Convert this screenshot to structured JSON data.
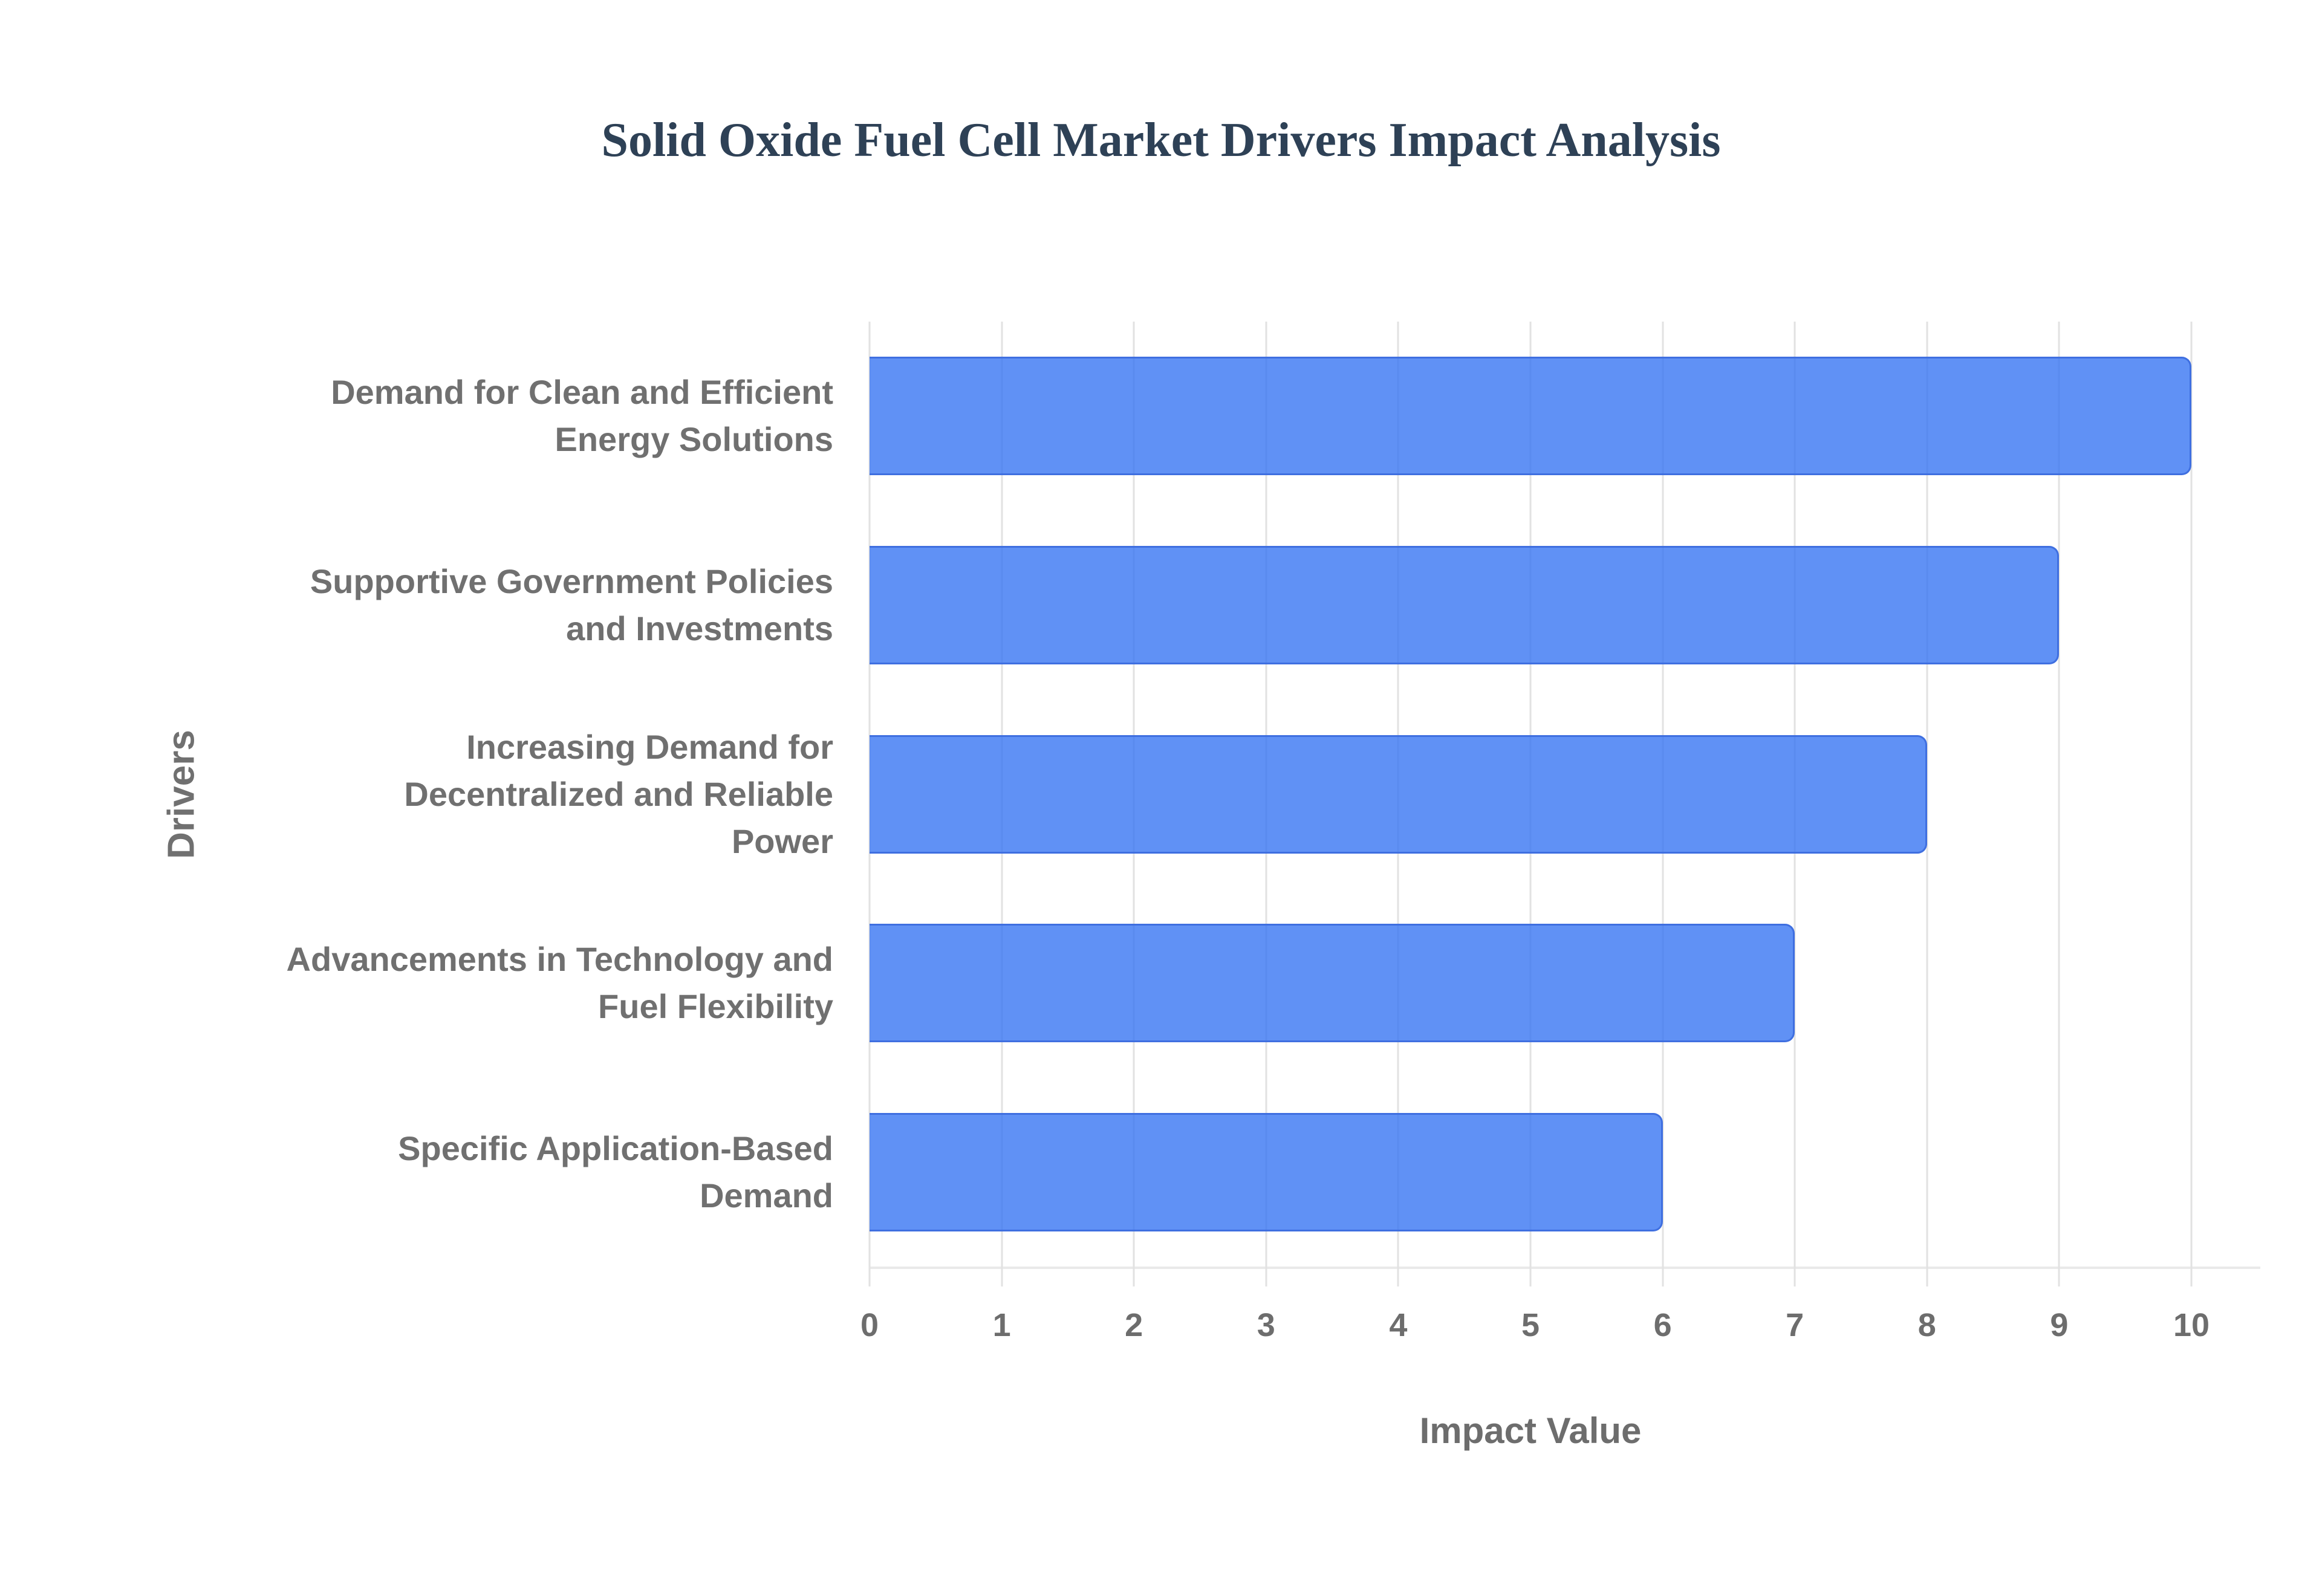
{
  "page": {
    "background": "#ffffff"
  },
  "chart_data": {
    "type": "bar",
    "orientation": "horizontal",
    "title": "Solid Oxide Fuel Cell Market Drivers Impact Analysis",
    "xlabel": "Impact Value",
    "ylabel": "Drivers",
    "categories": [
      "Demand for Clean and Efficient Energy Solutions",
      "Supportive Government Policies and Investments",
      "Increasing Demand for Decentralized and Reliable Power",
      "Advancements in Technology and Fuel Flexibility",
      "Specific Application-Based Demand"
    ],
    "category_label_lines": [
      [
        "Demand for Clean and Efficient",
        "Energy Solutions"
      ],
      [
        "Supportive Government Policies",
        "and Investments"
      ],
      [
        "Increasing Demand for",
        "Decentralized and Reliable",
        "Power"
      ],
      [
        "Advancements in Technology and",
        "Fuel Flexibility"
      ],
      [
        "Specific Application-Based",
        "Demand"
      ]
    ],
    "values": [
      10,
      9,
      8,
      7,
      6
    ],
    "xlim": [
      0,
      10
    ],
    "x_ticks": [
      0,
      1,
      2,
      3,
      4,
      5,
      6,
      7,
      8,
      9,
      10
    ],
    "grid": "vertical",
    "legend": "none",
    "colors": {
      "bar_fill": "rgba(56,118,242,0.80)",
      "bar_border": "#3f6fe0",
      "gridline": "#e2e2e2",
      "axis_line": "#e9e9e9",
      "title_text": "#2e4156",
      "category_text": "#707070",
      "tick_text": "#6d6d6d"
    }
  }
}
